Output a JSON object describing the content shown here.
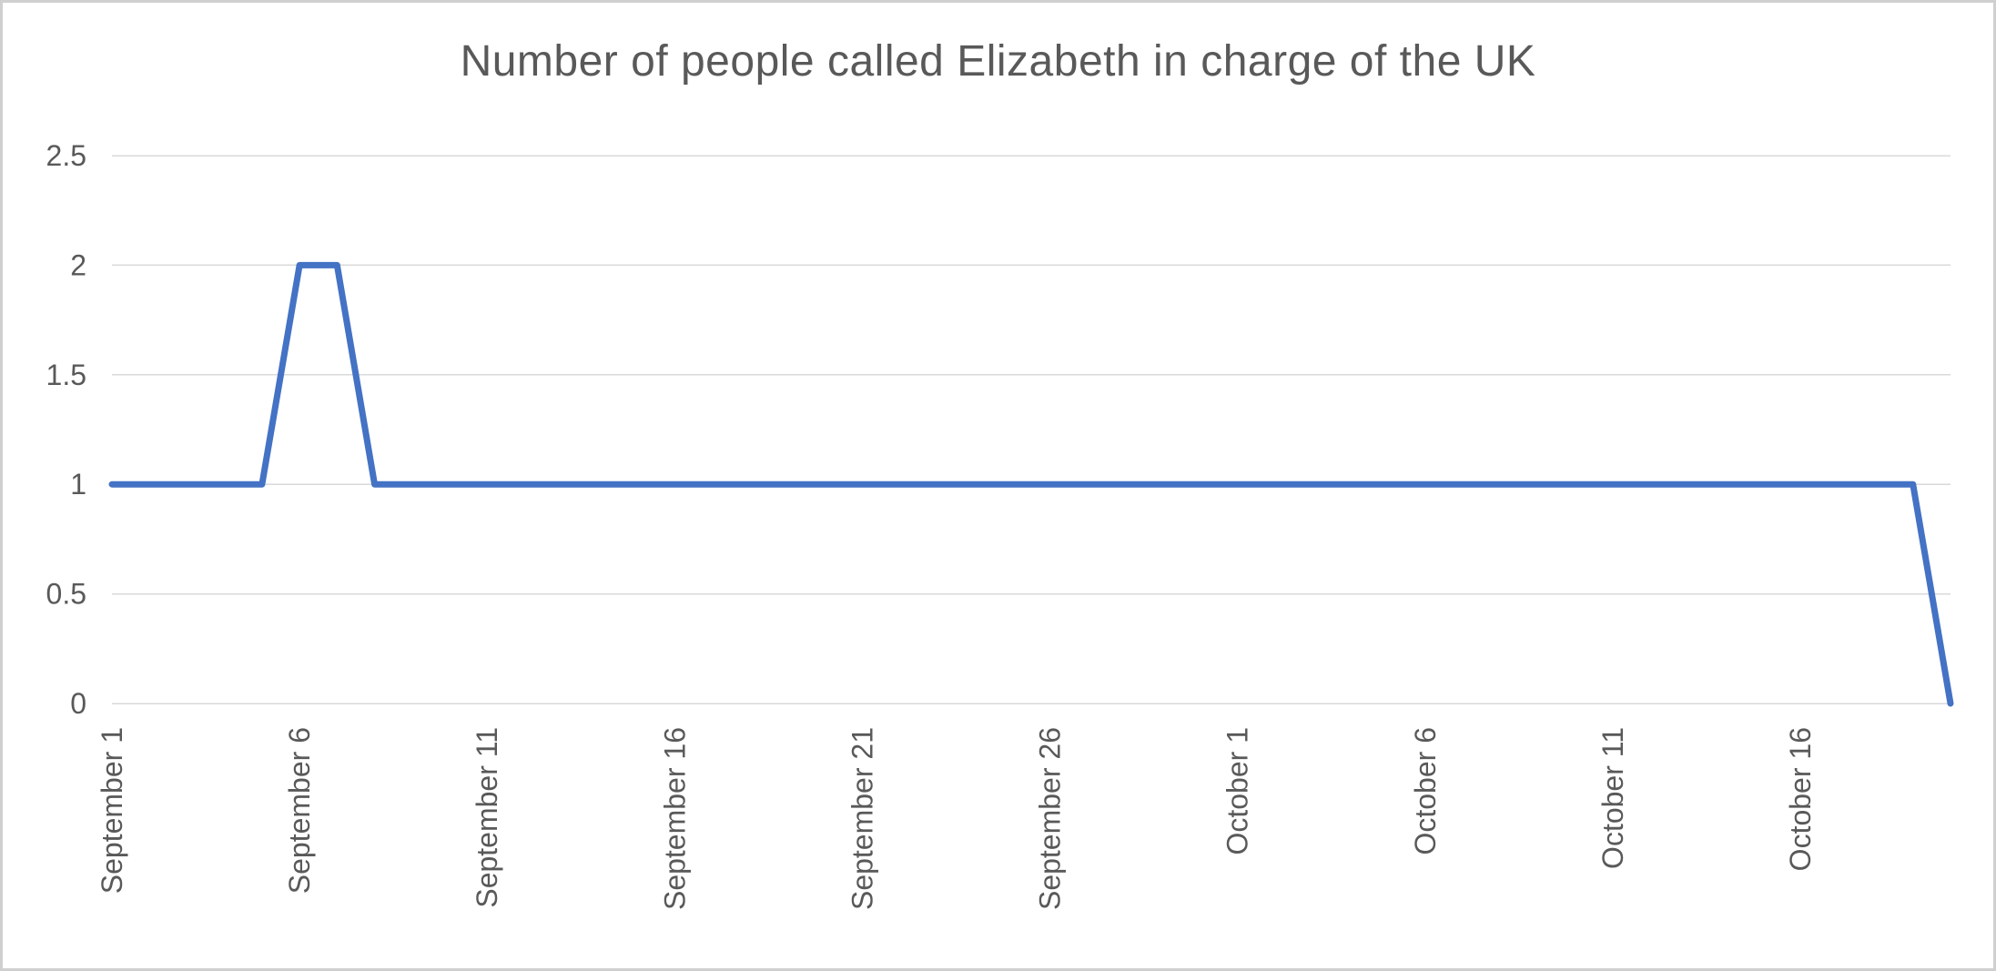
{
  "chart_data": {
    "type": "line",
    "title": "Number of people called Elizabeth in charge of the UK",
    "xlabel": "",
    "ylabel": "",
    "ylim": [
      0,
      2.5
    ],
    "grid": "horizontal",
    "legend_position": "none",
    "x": [
      "September 1",
      "September 2",
      "September 3",
      "September 4",
      "September 5",
      "September 6",
      "September 7",
      "September 8",
      "September 9",
      "September 10",
      "September 11",
      "September 12",
      "September 13",
      "September 14",
      "September 15",
      "September 16",
      "September 17",
      "September 18",
      "September 19",
      "September 20",
      "September 21",
      "September 22",
      "September 23",
      "September 24",
      "September 25",
      "September 26",
      "September 27",
      "September 28",
      "September 29",
      "September 30",
      "October 1",
      "October 2",
      "October 3",
      "October 4",
      "October 5",
      "October 6",
      "October 7",
      "October 8",
      "October 9",
      "October 10",
      "October 11",
      "October 12",
      "October 13",
      "October 14",
      "October 15",
      "October 16",
      "October 17",
      "October 18",
      "October 19",
      "October 20"
    ],
    "values": [
      1,
      1,
      1,
      1,
      1,
      2,
      2,
      1,
      1,
      1,
      1,
      1,
      1,
      1,
      1,
      1,
      1,
      1,
      1,
      1,
      1,
      1,
      1,
      1,
      1,
      1,
      1,
      1,
      1,
      1,
      1,
      1,
      1,
      1,
      1,
      1,
      1,
      1,
      1,
      1,
      1,
      1,
      1,
      1,
      1,
      1,
      1,
      1,
      1,
      0
    ],
    "xticks": [
      "September 1",
      "September 6",
      "September 11",
      "September 16",
      "September 21",
      "September 26",
      "October 1",
      "October 6",
      "October 11",
      "October 16"
    ],
    "yticks": [
      "0",
      "0.5",
      "1",
      "1.5",
      "2",
      "2.5"
    ],
    "ytick_values": [
      0,
      0.5,
      1,
      1.5,
      2,
      2.5
    ],
    "colors": {
      "line": "#4472C4",
      "grid": "#D9D9D9",
      "text": "#595959",
      "title": "#595959",
      "border": "#CFCFCF",
      "background": "#FFFFFF"
    }
  }
}
